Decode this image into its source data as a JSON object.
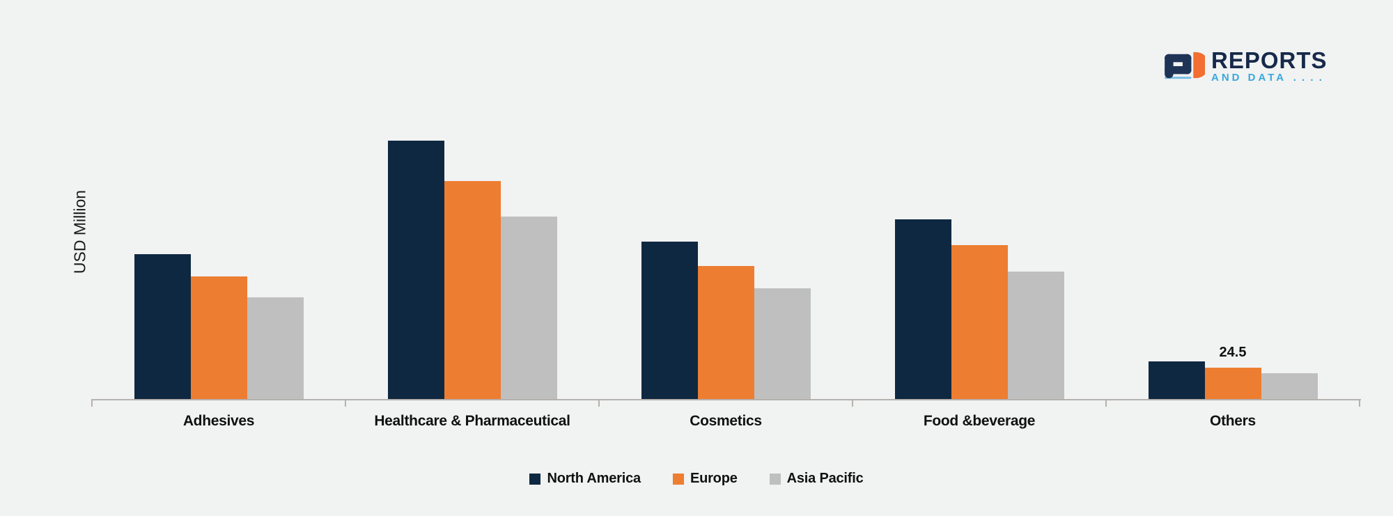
{
  "logo": {
    "brand_top": "REPORTS",
    "brand_bottom": "AND DATA",
    "brand_dots": ". . . .",
    "colors": {
      "navy": "#1e3356",
      "orange": "#f26e31",
      "light_blue": "#38a8de"
    }
  },
  "chart_data": {
    "type": "bar",
    "title": "",
    "xlabel": "",
    "ylabel": "USD Million",
    "ylim": [
      0,
      250
    ],
    "grid": false,
    "legend_position": "bottom",
    "categories": [
      "Adhesives",
      "Healthcare & Pharmaceutical",
      "Cosmetics",
      "Food &beverage",
      "Others"
    ],
    "series": [
      {
        "name": "North America",
        "color": "#0e2841",
        "values": [
          111,
          198,
          121,
          138,
          29
        ]
      },
      {
        "name": "Europe",
        "color": "#ed7d31",
        "values": [
          94,
          167,
          102,
          118,
          24.5
        ]
      },
      {
        "name": "Asia Pacific",
        "color": "#bfbfbf",
        "values": [
          78,
          140,
          85,
          98,
          20
        ]
      }
    ],
    "data_labels": [
      {
        "category": "Others",
        "series": "Europe",
        "text": "24.5"
      }
    ]
  }
}
